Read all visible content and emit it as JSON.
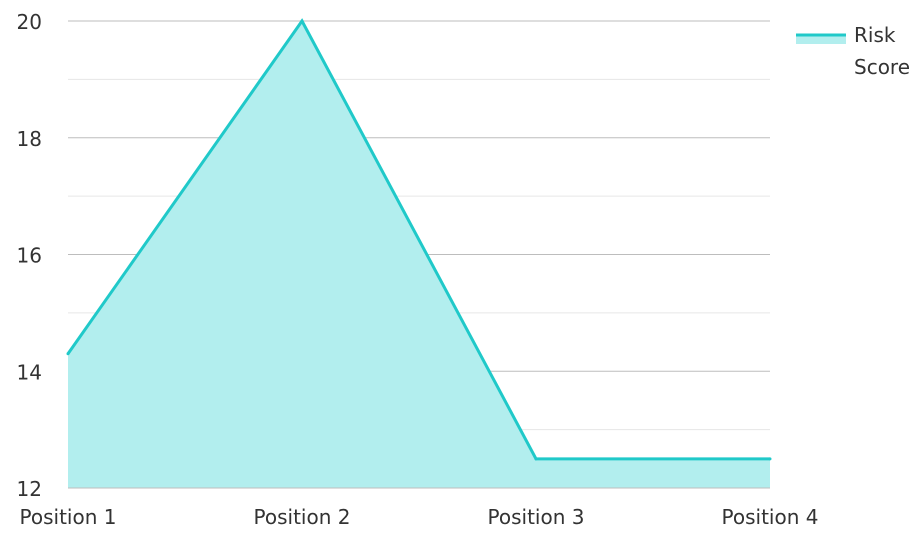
{
  "chart_data": {
    "type": "area",
    "categories": [
      "Position 1",
      "Position 2",
      "Position 3",
      "Position 4"
    ],
    "series": [
      {
        "name": "Risk Score",
        "values": [
          14.3,
          20,
          12.5,
          12.5
        ],
        "line_color": "#20c9c9",
        "fill_color": "#b2eeee"
      }
    ],
    "ylim": [
      12,
      20
    ],
    "y_ticks": [
      12,
      14,
      16,
      18,
      20
    ],
    "y_minor_ticks": [
      13,
      15,
      17,
      19
    ],
    "grid": true,
    "legend_position": "top-right",
    "legend_lines": [
      "Risk",
      "Score"
    ]
  }
}
